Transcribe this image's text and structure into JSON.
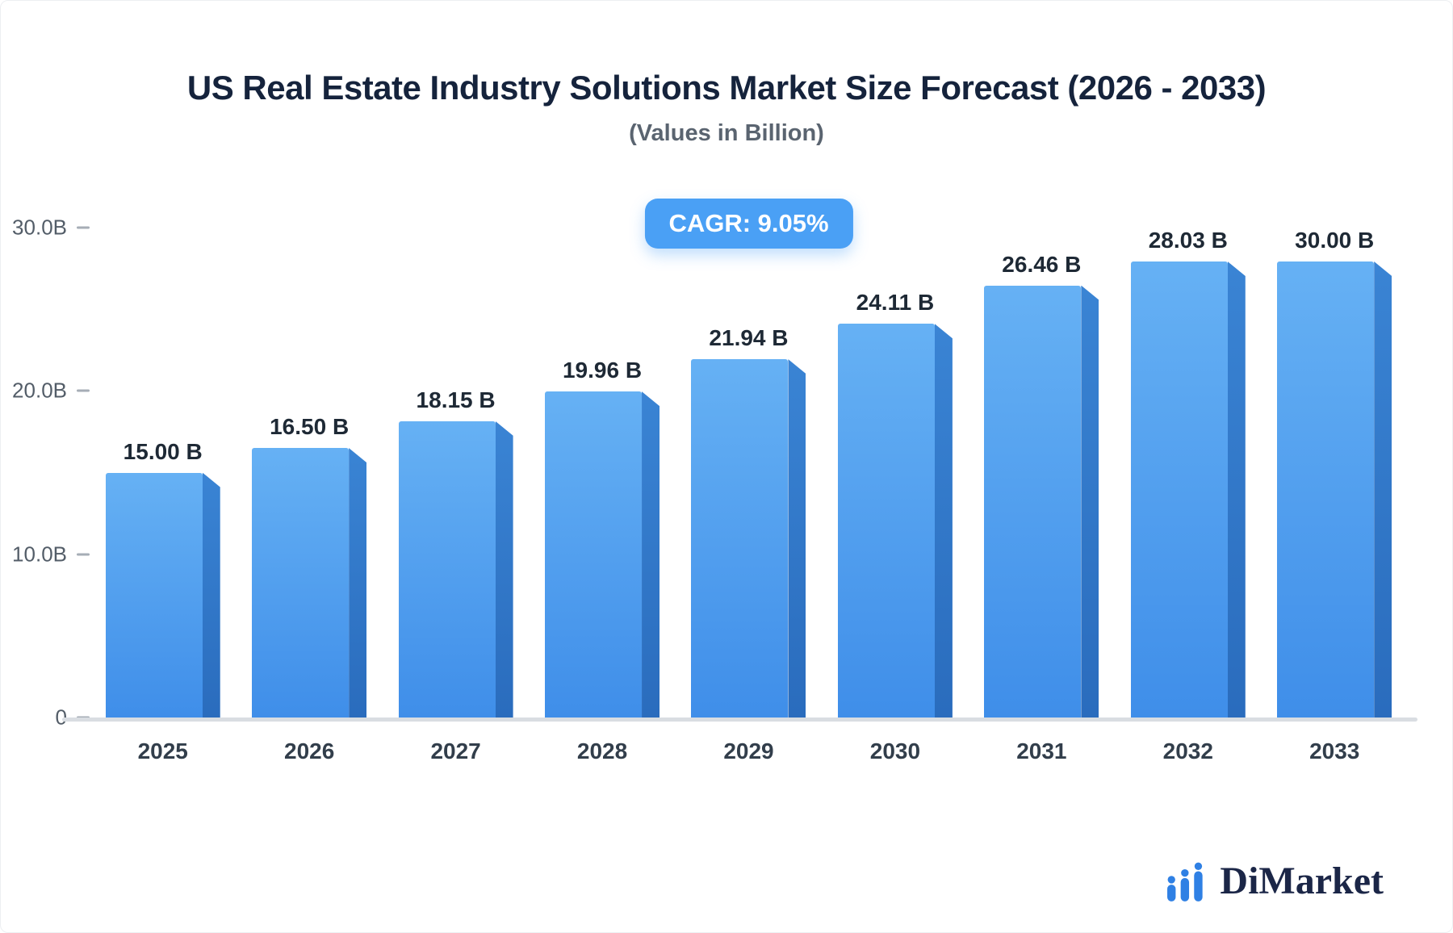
{
  "chart_data": {
    "type": "bar",
    "title": "US Real Estate Industry Solutions Market Size Forecast (2026 - 2033)",
    "subtitle": "(Values in Billion)",
    "categories": [
      "2025",
      "2026",
      "2027",
      "2028",
      "2029",
      "2030",
      "2031",
      "2032",
      "2033"
    ],
    "values": [
      15.0,
      16.5,
      18.15,
      19.96,
      21.94,
      24.11,
      26.46,
      28.03,
      30.0
    ],
    "value_labels": [
      "15.00 B",
      "16.50 B",
      "18.15 B",
      "19.96 B",
      "21.94 B",
      "24.11 B",
      "26.46 B",
      "28.03 B",
      "30.00 B"
    ],
    "xlabel": "",
    "ylabel": "",
    "ymax": 30,
    "ylim": [
      0,
      30
    ],
    "yticks": [
      {
        "label": "30.0B",
        "value": 30
      },
      {
        "label": "20.0B",
        "value": 20
      },
      {
        "label": "10.0B",
        "value": 10
      },
      {
        "label": "0",
        "value": 0
      }
    ],
    "grid": false,
    "legend": false,
    "bar_color_top": "#66b1f4",
    "bar_color_bottom": "#3f8ee9",
    "bar_side_color_top": "#3a84d4",
    "bar_side_color_bottom": "#2a6cbd"
  },
  "badge": {
    "label": "CAGR: 9.05%",
    "color": "#4aa0f5"
  },
  "logo": {
    "text": "DiMarket",
    "icon": "bar-chart-icon",
    "icon_color": "#2f80e4"
  }
}
